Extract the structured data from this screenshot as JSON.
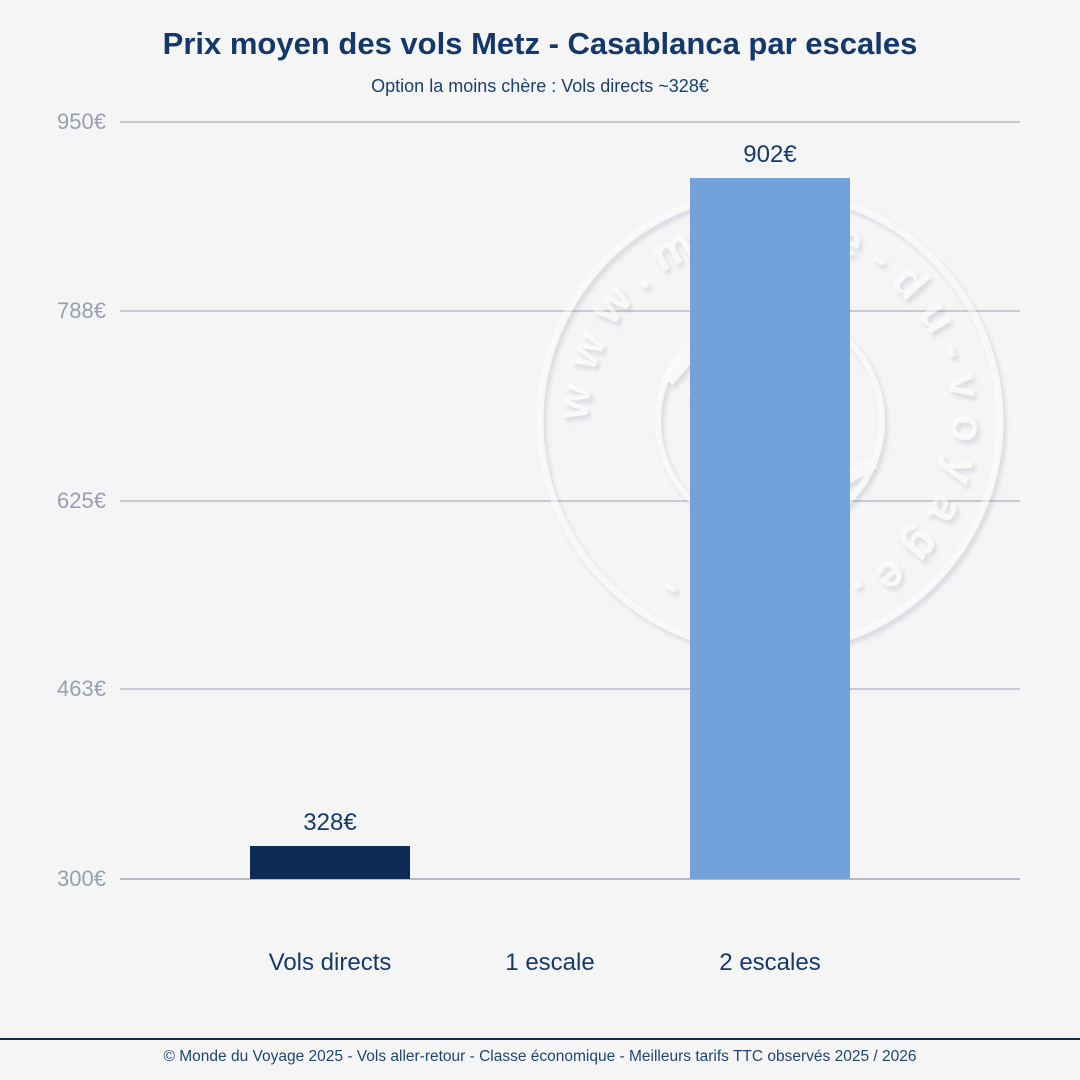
{
  "header": {
    "title": "Prix moyen des vols Metz - Casablanca par escales",
    "subtitle": "Option la moins chère : Vols directs ~328€"
  },
  "chart_data": {
    "type": "bar",
    "title": "Prix moyen des vols Metz - Casablanca par escales",
    "subtitle": "Option la moins chère : Vols directs ~328€",
    "categories": [
      "Vols directs",
      "1 escale",
      "2 escales"
    ],
    "values": [
      328,
      null,
      902
    ],
    "value_labels": [
      "328€",
      null,
      "902€"
    ],
    "bar_colors": [
      "#0d2b56",
      null,
      "#72a2d9"
    ],
    "unit": "€",
    "ylim": [
      300,
      950
    ],
    "y_ticks": [
      950,
      788,
      625,
      463,
      300
    ],
    "y_tick_labels": [
      "950€",
      "788€",
      "625€",
      "463€",
      "300€"
    ],
    "xlabel": "",
    "ylabel": "",
    "grid": "horizontal",
    "legend": "none"
  },
  "watermark": {
    "ring_text": "www.monde-du-voyage.com - ",
    "center_text": "MDV"
  },
  "footer": {
    "text": "© Monde du Voyage 2025 - Vols aller-retour - Classe économique - Meilleurs tarifs TTC observés 2025 / 2026"
  },
  "colors": {
    "background": "#f5f5f6",
    "title_text": "#14386a",
    "bar_dark": "#0d2b56",
    "bar_light": "#72a2d9",
    "gridline": "#c6cad3",
    "tick_label": "#989fae",
    "footer_line": "#0d2b4f",
    "footer_text": "#1f4671"
  }
}
